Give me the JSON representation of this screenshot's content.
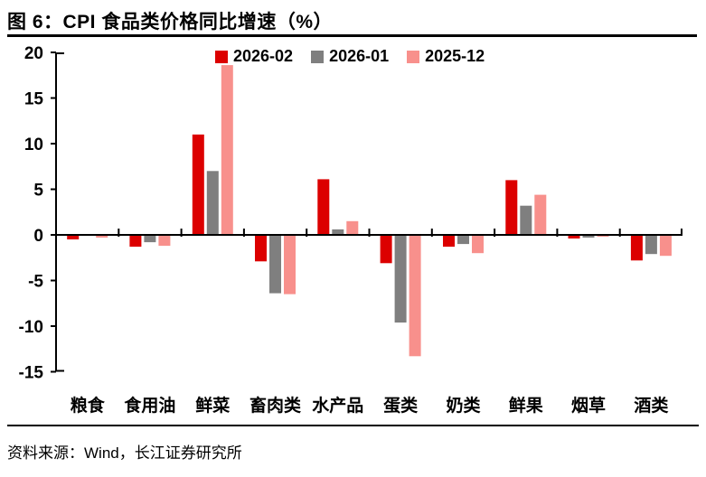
{
  "figure": {
    "title": "图 6：CPI 食品类价格同比增速（%）",
    "source": "资料来源：Wind，长江证券研究所"
  },
  "chart_data": {
    "type": "bar",
    "title": "CPI 食品类价格同比增速（%）",
    "xlabel": "",
    "ylabel": "",
    "ylim": [
      -15,
      20
    ],
    "ytick_step": 5,
    "ytick_labels": [
      "20",
      "15",
      "10",
      "5",
      "0",
      "-5",
      "-10",
      "-15"
    ],
    "grid": false,
    "legend_position": "top",
    "categories": [
      "粮食",
      "食用油",
      "鲜菜",
      "畜肉类",
      "水产品",
      "蛋类",
      "奶类",
      "鲜果",
      "烟草",
      "酒类"
    ],
    "series": [
      {
        "name": "2026-02",
        "color": "#DC0000",
        "values": [
          -0.5,
          -1.3,
          11.0,
          -2.9,
          6.1,
          -3.1,
          -1.3,
          6.0,
          -0.4,
          -2.8
        ]
      },
      {
        "name": "2026-01",
        "color": "#7F7F7F",
        "values": [
          -0.1,
          -0.8,
          7.0,
          -6.4,
          0.6,
          -9.6,
          -1.0,
          3.2,
          -0.3,
          -2.1
        ]
      },
      {
        "name": "2025-12",
        "color": "#F8908C",
        "values": [
          -0.3,
          -1.2,
          18.6,
          -6.5,
          1.5,
          -13.3,
          -2.0,
          4.4,
          -0.2,
          -2.3
        ]
      }
    ],
    "colors": {
      "axis": "#000000",
      "background": "#FFFFFF"
    }
  }
}
